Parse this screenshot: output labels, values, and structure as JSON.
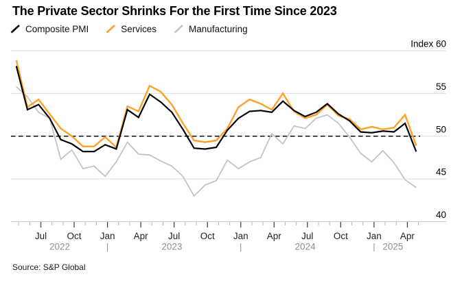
{
  "title": "The Private Sector Shrinks For the First Time Since 2023",
  "source": "Source: S&P Global",
  "chart_data": {
    "type": "line",
    "title": "The Private Sector Shrinks For the First Time Since 2023",
    "grid": "horizontal",
    "legend_position": "top-left",
    "y_axis_side": "right",
    "ylim": [
      40,
      60
    ],
    "threshold": {
      "value": 50,
      "style": "dashed",
      "color": "#000000"
    },
    "y_ticks": [
      {
        "value": 60,
        "label": "Index 60"
      },
      {
        "value": 55,
        "label": "55"
      },
      {
        "value": 50,
        "label": "50"
      },
      {
        "value": 45,
        "label": "45"
      },
      {
        "value": 40,
        "label": "40"
      }
    ],
    "x": [
      "Apr 2022",
      "May 2022",
      "Jun 2022",
      "Jul 2022",
      "Aug 2022",
      "Sep 2022",
      "Oct 2022",
      "Nov 2022",
      "Dec 2022",
      "Jan 2023",
      "Feb 2023",
      "Mar 2023",
      "Apr 2023",
      "May 2023",
      "Jun 2023",
      "Jul 2023",
      "Aug 2023",
      "Sep 2023",
      "Oct 2023",
      "Nov 2023",
      "Dec 2023",
      "Jan 2024",
      "Feb 2024",
      "Mar 2024",
      "Apr 2024",
      "May 2024",
      "Jun 2024",
      "Jul 2024",
      "Aug 2024",
      "Sep 2024",
      "Oct 2024",
      "Nov 2024",
      "Dec 2024",
      "Jan 2025",
      "Feb 2025",
      "Mar 2025",
      "Apr 2025"
    ],
    "series": [
      {
        "name": "Composite PMI",
        "color": "#000000",
        "values": [
          58.2,
          53.1,
          53.7,
          52.1,
          49.6,
          49.1,
          48.2,
          48.2,
          49.0,
          48.5,
          53.1,
          52.2,
          54.9,
          54.0,
          52.8,
          50.8,
          48.6,
          48.5,
          48.7,
          50.7,
          52.1,
          52.9,
          53.0,
          52.8,
          54.1,
          53.0,
          52.3,
          52.8,
          53.8,
          52.6,
          51.8,
          50.5,
          50.4,
          50.6,
          50.5,
          51.5,
          48.2
        ]
      },
      {
        "name": "Services",
        "color": "#ffa028",
        "values": [
          58.9,
          53.4,
          54.3,
          52.6,
          50.9,
          50.0,
          48.8,
          48.8,
          49.9,
          48.7,
          53.5,
          52.9,
          55.9,
          55.2,
          53.7,
          51.5,
          49.5,
          49.3,
          49.5,
          50.9,
          53.4,
          54.3,
          53.8,
          53.1,
          55.0,
          52.9,
          52.1,
          52.5,
          53.7,
          52.4,
          52.0,
          50.8,
          51.1,
          50.8,
          51.0,
          52.5,
          48.9
        ]
      },
      {
        "name": "Manufacturing",
        "color": "#c3c3c3",
        "values": [
          55.8,
          54.6,
          52.8,
          52.1,
          47.3,
          48.4,
          46.2,
          46.5,
          45.3,
          47.0,
          49.3,
          47.9,
          47.8,
          47.1,
          46.5,
          45.3,
          43.0,
          44.3,
          44.8,
          47.2,
          46.2,
          47.0,
          47.5,
          50.3,
          49.1,
          51.2,
          50.9,
          52.1,
          52.5,
          51.5,
          49.9,
          48.0,
          47.0,
          48.3,
          46.9,
          44.9,
          44.0
        ]
      }
    ],
    "year_labels": [
      {
        "label": "2022",
        "index": 4.7
      },
      {
        "label": "2023",
        "index": 14.8
      },
      {
        "label": "2024",
        "index": 26.8
      },
      {
        "label": "2025",
        "index": 34.7
      }
    ],
    "year_separators": [
      9,
      21,
      33
    ],
    "year_separator_glyph": "|",
    "colors": {
      "gridline": "#dcdcdc",
      "axis_line": "#c8c8c8",
      "major_tick": "#444444",
      "minor_tick": "#b5b5b5",
      "month_label": "#1f1f1f",
      "year_label": "#8f8f8f"
    }
  }
}
